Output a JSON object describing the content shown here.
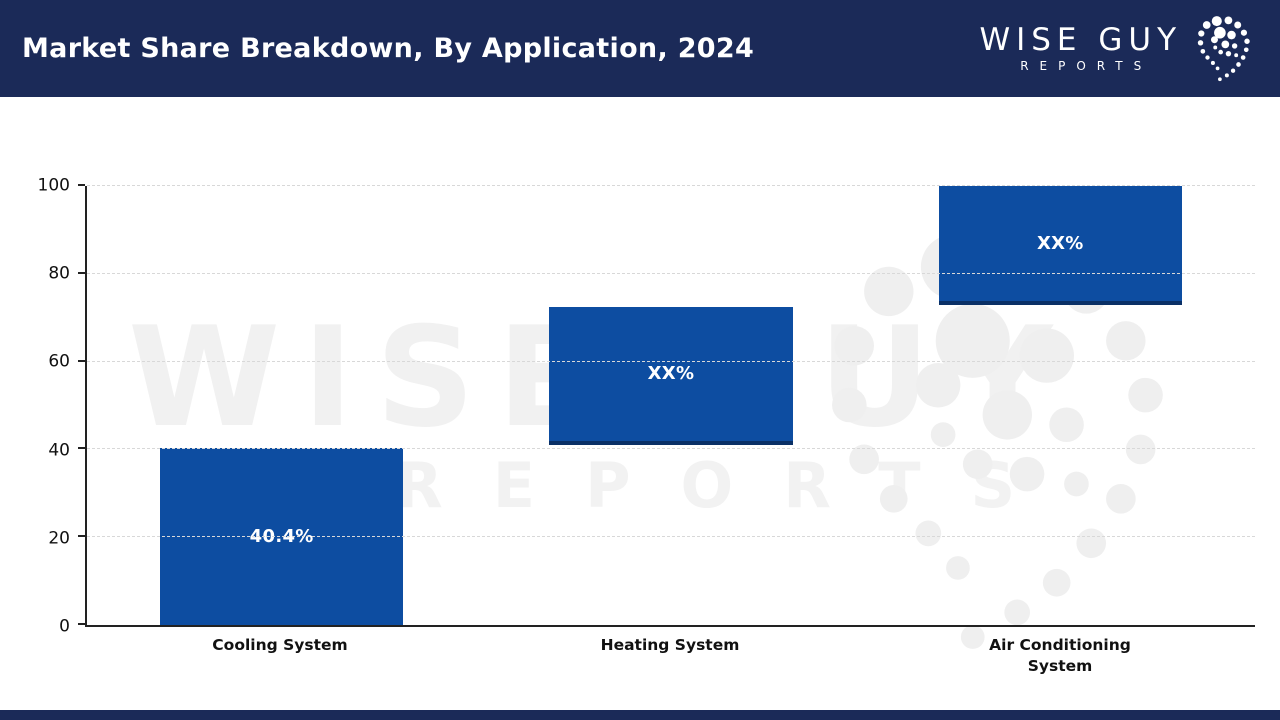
{
  "header": {
    "title": "Market Share Breakdown, By Application, 2024",
    "logo": {
      "line1": "WISE GUY",
      "line2": "REPORTS"
    }
  },
  "watermark": {
    "line1": "WISE GUY",
    "line2": "REPORTS"
  },
  "chart_data": {
    "type": "bar",
    "variant": "floating-waterfall-columns",
    "title": "Market Share Breakdown, By Application, 2024",
    "categories": [
      "Cooling System",
      "Heating System",
      "Air Conditioning System"
    ],
    "series": [
      {
        "name": "Market share (%)",
        "segments": [
          {
            "category": "Cooling System",
            "start": 0,
            "end": 40.4,
            "label": "40.4%"
          },
          {
            "category": "Heating System",
            "start": 41,
            "end": 72.5,
            "label": "XX%"
          },
          {
            "category": "Air Conditioning System",
            "start": 73,
            "end": 100,
            "label": "XX%"
          }
        ]
      }
    ],
    "ylim": [
      0,
      100
    ],
    "yticks": [
      0,
      20,
      40,
      60,
      80,
      100
    ],
    "grid": true,
    "legend": "none",
    "bar_color": "#0d4da1",
    "colors": {
      "header_bg": "#1b2a58",
      "footer_bg": "#1b2a58",
      "bar": "#0d4da1"
    }
  }
}
